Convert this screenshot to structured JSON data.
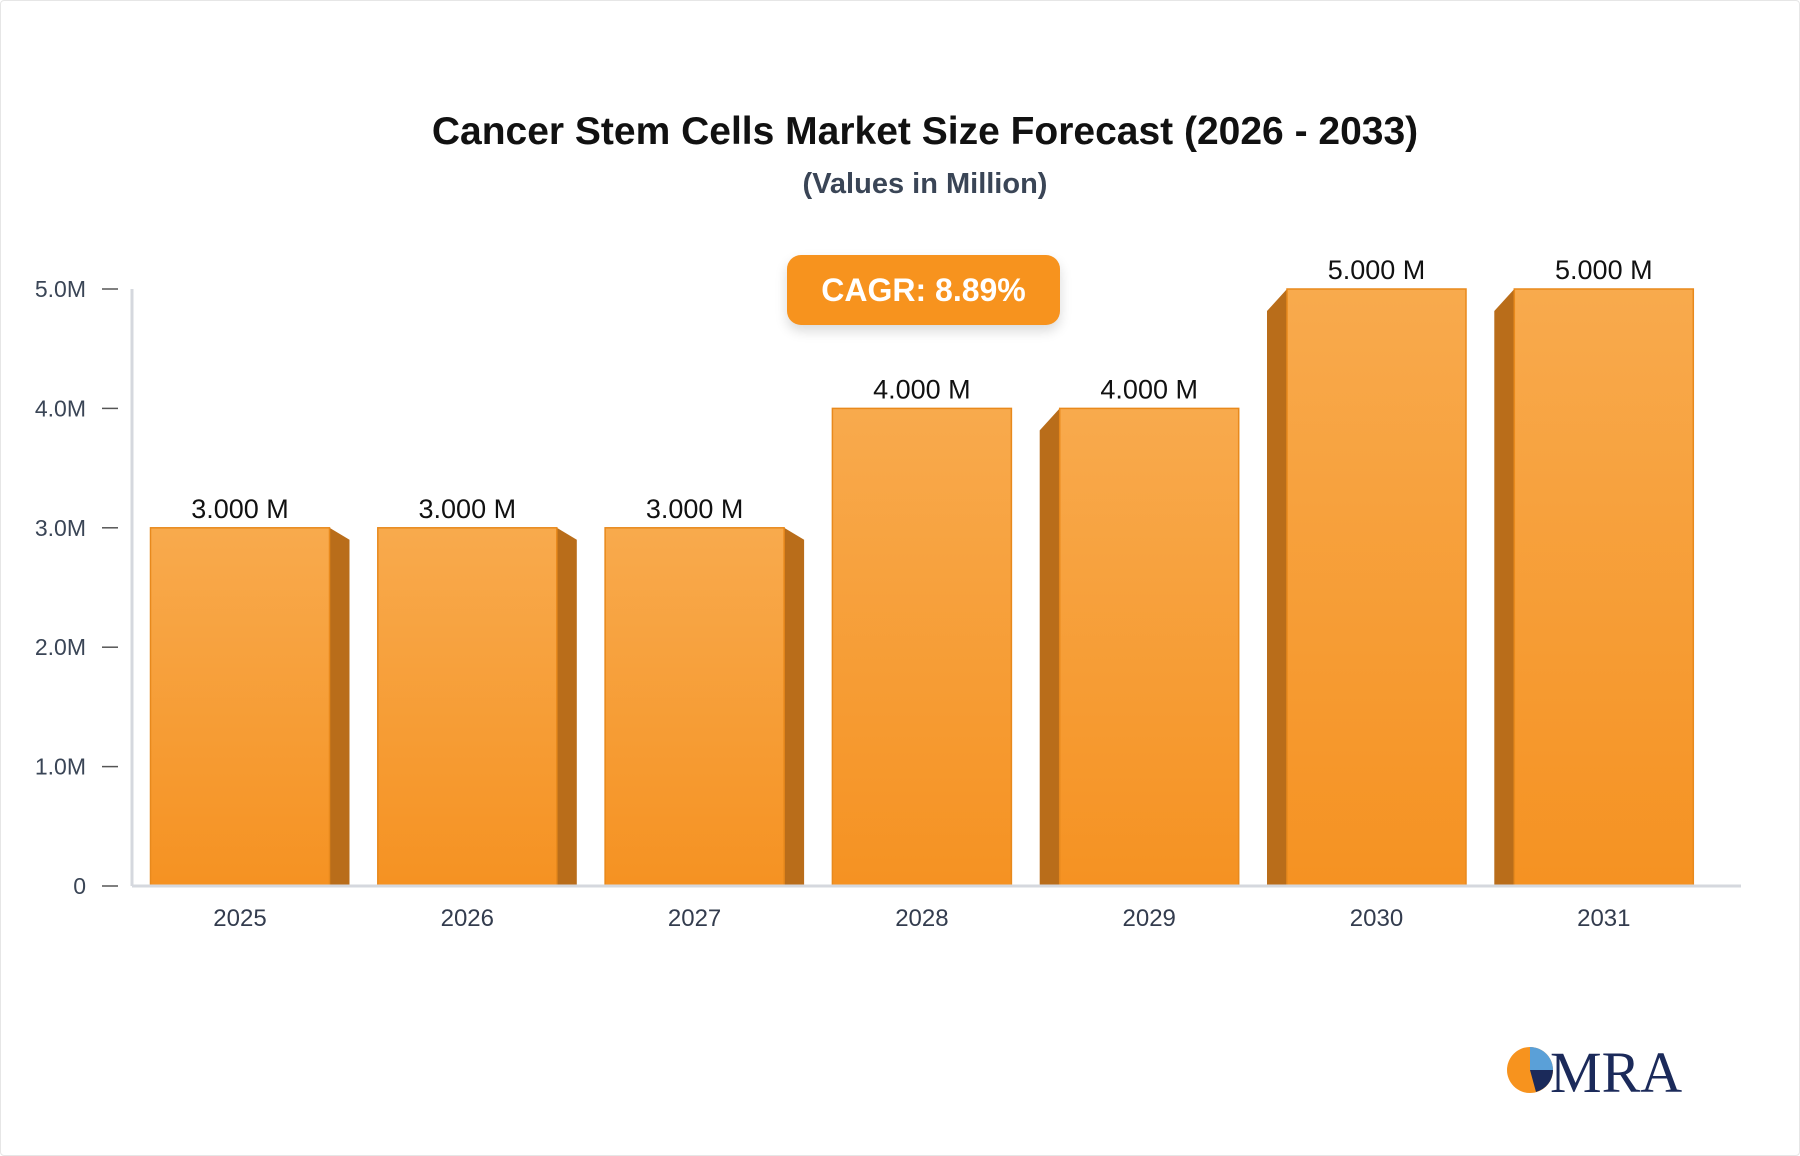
{
  "chart_data": {
    "type": "bar",
    "title": "Cancer Stem Cells Market Size Forecast (2026 - 2033)",
    "subtitle": "(Values in Million)",
    "categories": [
      "2025",
      "2026",
      "2027",
      "2028",
      "2029",
      "2030",
      "2031"
    ],
    "values": [
      3.0,
      3.0,
      3.0,
      4.0,
      4.0,
      5.0,
      5.0
    ],
    "data_labels": [
      "3.000 M",
      "3.000 M",
      "3.000 M",
      "4.000 M",
      "4.000 M",
      "5.000 M",
      "5.000 M"
    ],
    "yticks": [
      "0",
      "1.0M",
      "2.0M",
      "3.0M",
      "4.0M",
      "5.0M"
    ],
    "ylim": [
      0,
      5
    ],
    "xlabel": "",
    "ylabel": "",
    "grid": false,
    "annotation": "CAGR: 8.89%",
    "colors": {
      "bar": "#f7a040",
      "bar_side": "#b96d1a",
      "badge": "#f7931e"
    }
  },
  "logo": {
    "text": "MRA"
  }
}
